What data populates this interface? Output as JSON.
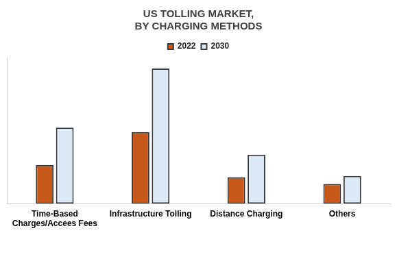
{
  "chart_data": {
    "type": "bar",
    "title": "US TOLLING MARKET, BY CHARGING METHODS",
    "categories": [
      "Time-Based Charges/Accees Fees",
      "Infrastructure Tolling",
      "Distance Charging",
      "Others"
    ],
    "series": [
      {
        "name": "2022",
        "color": "#c8571a",
        "values": [
          53,
          98,
          36,
          27
        ]
      },
      {
        "name": "2030",
        "color": "#dde9f5",
        "values": [
          104,
          185,
          67,
          38
        ]
      }
    ],
    "ylim": [
      0,
      200
    ],
    "grid": false,
    "legend": "top",
    "tick_labels": "x"
  }
}
